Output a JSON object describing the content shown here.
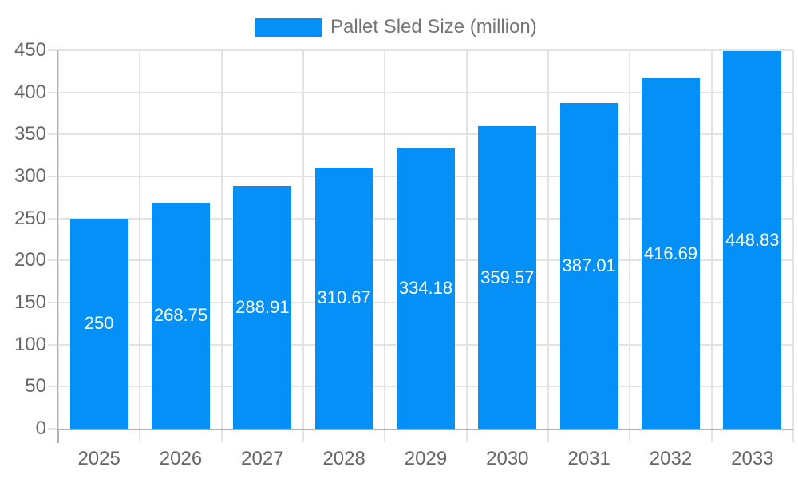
{
  "chart_data": {
    "type": "bar",
    "legend_label": "Pallet Sled Size (million)",
    "legend_position": "top",
    "categories": [
      "2025",
      "2026",
      "2027",
      "2028",
      "2029",
      "2030",
      "2031",
      "2032",
      "2033"
    ],
    "series": [
      {
        "name": "Pallet Sled Size (million)",
        "values": [
          250,
          268.75,
          288.91,
          310.67,
          334.18,
          359.57,
          387.01,
          416.69,
          448.83
        ]
      }
    ],
    "value_labels": [
      "250",
      "268.75",
      "288.91",
      "310.67",
      "334.18",
      "359.57",
      "387.01",
      "416.69",
      "448.83"
    ],
    "yticks": [
      0,
      50,
      100,
      150,
      200,
      250,
      300,
      350,
      400,
      450
    ],
    "ylim": [
      0,
      450
    ],
    "grid": true,
    "colors": {
      "bar": "#0590f8",
      "bar_label": "#ffffff",
      "axis_text": "#666666",
      "legend_text": "#757575",
      "grid_line": "#e3e3e3",
      "axis_line": "#b0b0b0",
      "background": "#ffffff"
    }
  }
}
